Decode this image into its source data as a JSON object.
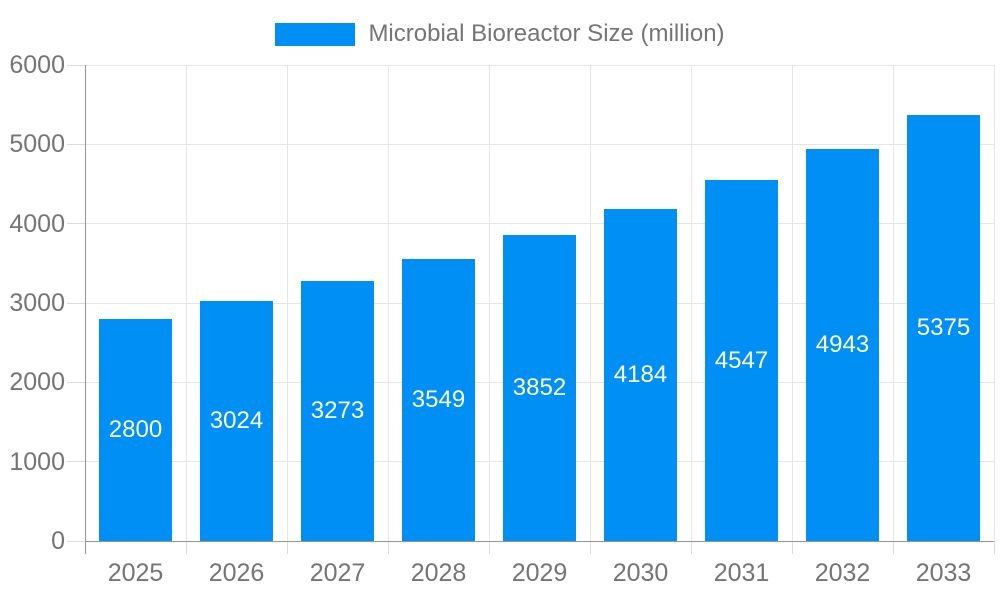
{
  "legend": {
    "label": "Microbial Bioreactor Size (million)"
  },
  "chart_data": {
    "type": "bar",
    "title": "Microbial Bioreactor Size (million)",
    "series_name": "Microbial Bioreactor Size (million)",
    "categories": [
      "2025",
      "2026",
      "2027",
      "2028",
      "2029",
      "2030",
      "2031",
      "2032",
      "2033"
    ],
    "values": [
      2800,
      3024,
      3273,
      3549,
      3852,
      4184,
      4547,
      4943,
      5375
    ],
    "bar_labels": [
      "2800",
      "3024",
      "3273",
      "3549",
      "3852",
      "4184",
      "4547",
      "4943",
      "5375"
    ],
    "xlabel": "",
    "ylabel": "",
    "ylim": [
      0,
      6000
    ],
    "ytick_step": 1000,
    "yticks": [
      "0",
      "1000",
      "2000",
      "3000",
      "4000",
      "5000",
      "6000"
    ],
    "grid": true,
    "legend_position": "top",
    "colors": {
      "bar": "#0090F5",
      "bar_label_text": "#ffffff",
      "axis_text": "#757575",
      "grid_line": "#e6e6e6",
      "axis_line": "#959595",
      "tick_line": "#dcdcdc",
      "background": "#ffffff"
    }
  }
}
